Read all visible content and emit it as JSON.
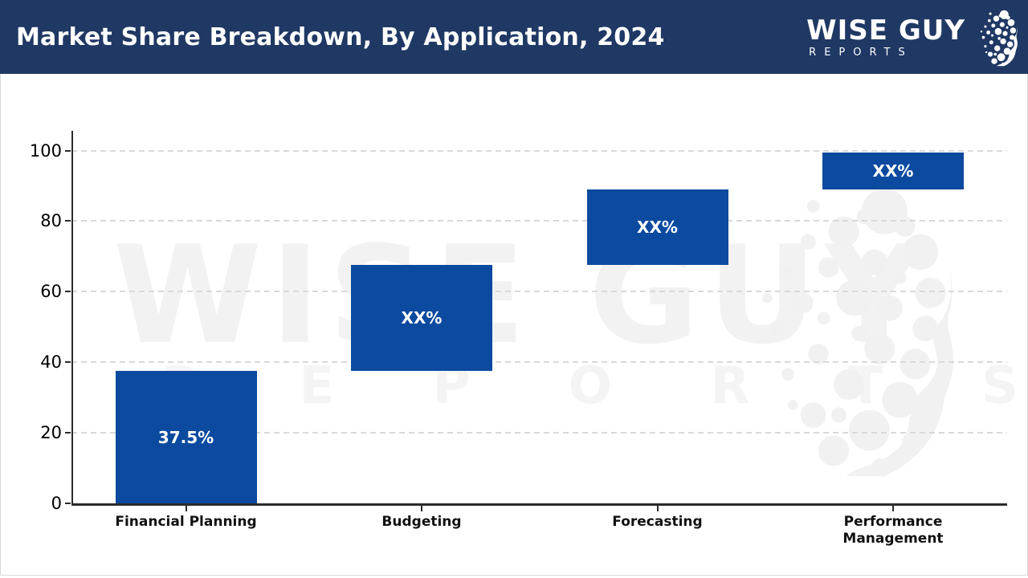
{
  "header": {
    "title": "Market Share Breakdown, By Application, 2024"
  },
  "logo": {
    "line1": "WISE GUY",
    "line2": "REPORTS",
    "icon": "dot-head-icon"
  },
  "watermark": {
    "line1": "WISE GUY",
    "line2": "R E P O R T S",
    "icon": "dot-head-icon"
  },
  "colors": {
    "header_bg": "#1f3864",
    "header_text": "#ffffff",
    "bar": "#0b4a9f",
    "bar_label": "#ffffff",
    "axis": "#2b2b2b",
    "tick_label": "#000000",
    "grid": "#d9d9d9",
    "watermark": "#f2f2f2",
    "panel_border": "#d9d9d9",
    "background": "#ffffff"
  },
  "chart_data": {
    "type": "bar",
    "subtype": "waterfall",
    "title": "Market Share Breakdown, By Application, 2024",
    "categories": [
      "Financial Planning",
      "Budgeting",
      "Forecasting",
      "Performance\nManagement"
    ],
    "series": [
      {
        "segments": [
          {
            "category": "Financial Planning",
            "start": 0,
            "end": 37.5,
            "value": 37.5,
            "value_label": "37.5%"
          },
          {
            "category": "Budgeting",
            "start": 37.5,
            "end": 67.5,
            "value": 30,
            "value_label": "XX%"
          },
          {
            "category": "Forecasting",
            "start": 67.5,
            "end": 89,
            "value": 21.5,
            "value_label": "XX%"
          },
          {
            "category": "Performance Management",
            "start": 89,
            "end": 99.5,
            "value": 10.5,
            "value_label": "XX%"
          }
        ]
      }
    ],
    "yticks": [
      0,
      20,
      40,
      60,
      80,
      100
    ],
    "ylim": [
      0,
      104
    ],
    "xlabel": "",
    "ylabel": "",
    "grid": "horizontal dashed",
    "legend": "none"
  }
}
